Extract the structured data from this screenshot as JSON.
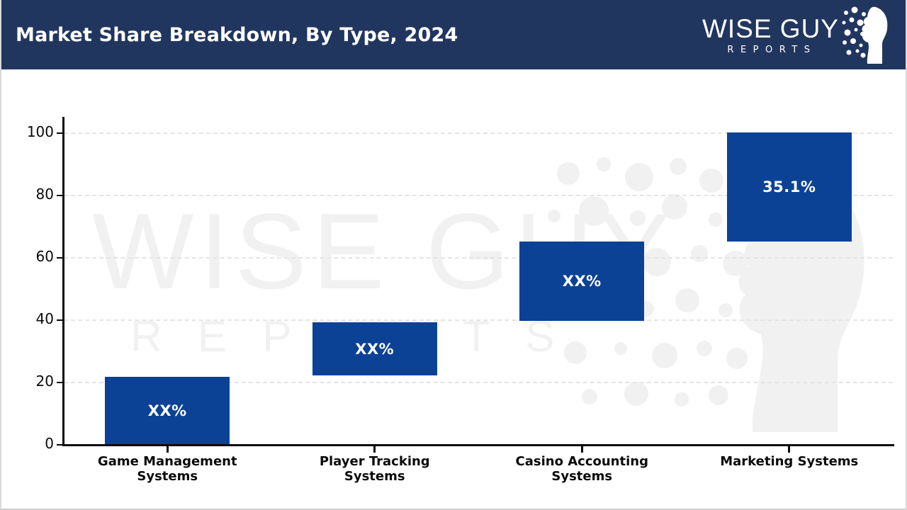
{
  "header": {
    "title": "Market Share Breakdown, By Type, 2024",
    "logo": {
      "line1": "WISE GUY",
      "line2": "REPORTS"
    }
  },
  "watermark": {
    "line1": "WISE GUY",
    "line2": "REPORTS"
  },
  "colors": {
    "header_bg": "#21365F",
    "bar": "#0B4296",
    "grid": "#E4E4E4",
    "axis": "#0A0A0A",
    "bar_label_text": "#FFFFFF",
    "watermark": "#F1F1F1",
    "frame_border": "#D9D9D9"
  },
  "chart_data": {
    "type": "bar",
    "subtype": "waterfall",
    "title": "Market Share Breakdown, By Type, 2024",
    "categories": [
      "Game Management\nSystems",
      "Player Tracking\nSystems",
      "Casino Accounting\nSystems",
      "Marketing Systems"
    ],
    "segments": [
      {
        "start": 0,
        "end": 21.5,
        "label": "XX%"
      },
      {
        "start": 22,
        "end": 39,
        "label": "XX%"
      },
      {
        "start": 39.5,
        "end": 65,
        "label": "XX%"
      },
      {
        "start": 64.9,
        "end": 100,
        "label": "35.1%"
      }
    ],
    "values": [
      21.5,
      17,
      25.5,
      35.1
    ],
    "yticks": [
      0,
      20,
      40,
      60,
      80,
      100
    ],
    "ylim": [
      0,
      105
    ],
    "xlabel": "",
    "ylabel": "",
    "grid": "horizontal-dashed",
    "legend": "none"
  }
}
